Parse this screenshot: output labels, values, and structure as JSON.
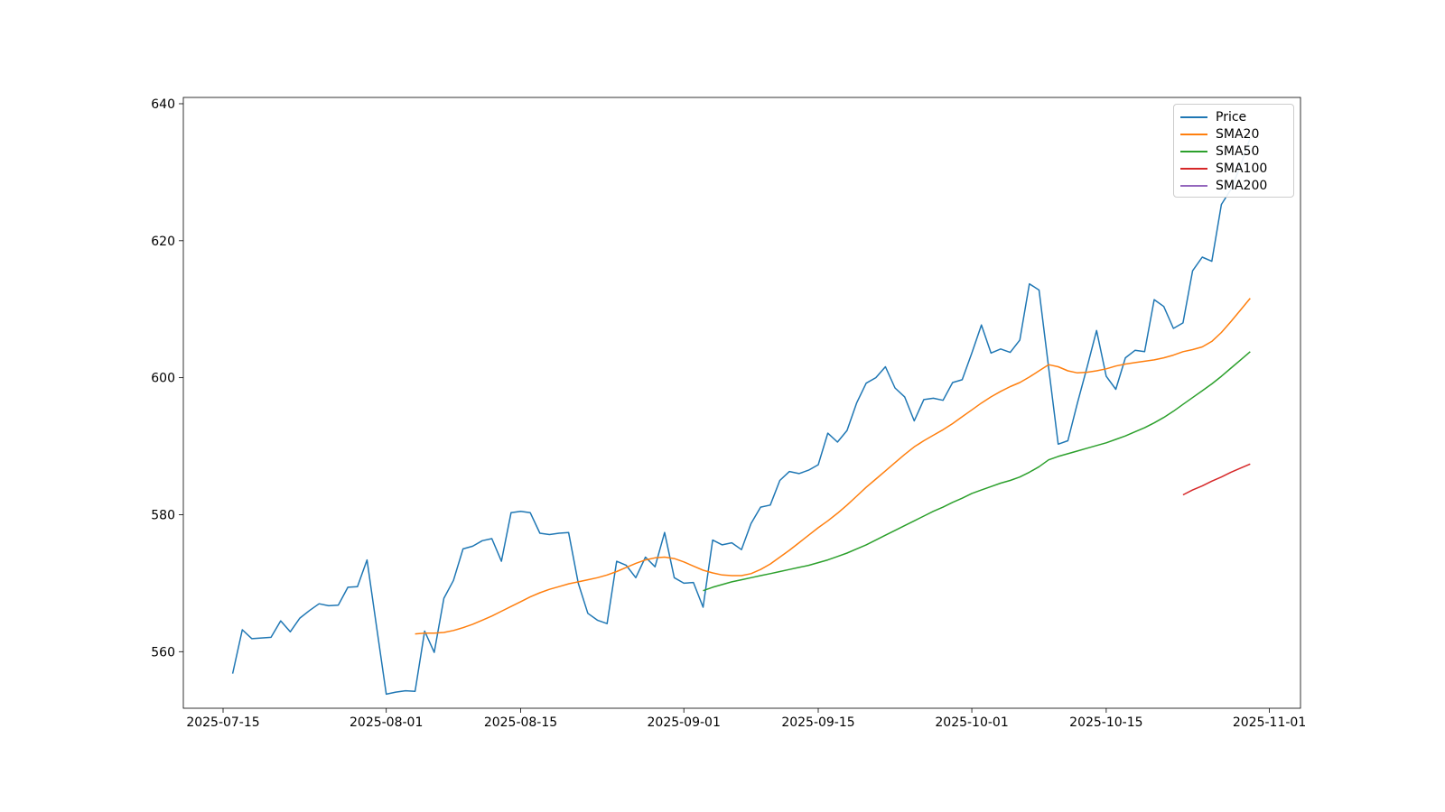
{
  "chart_data": {
    "type": "line",
    "title": "",
    "xlabel": "",
    "ylabel": "",
    "grid": false,
    "background_color": "#ffffff",
    "spine_color": "#000000",
    "x_axis": {
      "start_date": "2025-07-16",
      "unit": "calendar-daily",
      "tick_labels": [
        "2025-07-15",
        "2025-08-01",
        "2025-08-15",
        "2025-09-01",
        "2025-09-15",
        "2025-10-01",
        "2025-10-15",
        "2025-11-01"
      ],
      "tick_day_offsets": [
        -1,
        16,
        30,
        47,
        61,
        77,
        91,
        108
      ],
      "xlim_day_offsets": [
        -5.14,
        111.24
      ]
    },
    "y_axis": {
      "tick_labels": [
        "560",
        "580",
        "600",
        "620",
        "640"
      ],
      "ticks": [
        560,
        580,
        600,
        620,
        640
      ],
      "ylim": [
        551.74,
        640.92
      ]
    },
    "legend": {
      "position": "upper right",
      "entries": [
        {
          "label": "Price",
          "color": "#1f77b4"
        },
        {
          "label": "SMA20",
          "color": "#ff7f0e"
        },
        {
          "label": "SMA50",
          "color": "#2ca02c"
        },
        {
          "label": "SMA100",
          "color": "#d62728"
        },
        {
          "label": "SMA200",
          "color": "#9467bd"
        }
      ]
    },
    "series": [
      {
        "name": "Price",
        "color": "#1f77b4",
        "start_day_offset": 0,
        "values": [
          556.8,
          563.2,
          561.9,
          562.0,
          562.1,
          564.5,
          562.9,
          564.9,
          566.0,
          567.0,
          566.7,
          566.8,
          569.4,
          569.5,
          573.4,
          563.5,
          553.8,
          554.1,
          554.3,
          554.2,
          563.0,
          559.9,
          567.8,
          570.4,
          575.0,
          575.4,
          576.2,
          576.5,
          573.2,
          580.3,
          580.5,
          580.3,
          577.3,
          577.1,
          577.3,
          577.4,
          570.0,
          565.6,
          564.6,
          564.1,
          573.2,
          572.6,
          570.8,
          573.8,
          572.4,
          577.4,
          570.8,
          570.0,
          570.1,
          566.5,
          576.3,
          575.6,
          575.9,
          574.9,
          578.7,
          581.1,
          581.4,
          585.0,
          586.3,
          586.0,
          586.5,
          587.3,
          591.9,
          590.6,
          592.3,
          596.3,
          599.2,
          600.0,
          601.6,
          598.5,
          597.2,
          593.7,
          596.8,
          597.0,
          596.7,
          599.3,
          599.7,
          603.6,
          607.7,
          603.6,
          604.2,
          603.7,
          605.5,
          613.7,
          612.8,
          601.5,
          590.3,
          590.8,
          596.3,
          601.5,
          606.9,
          600.2,
          598.3,
          602.9,
          604.0,
          603.8,
          611.4,
          610.4,
          607.2,
          608.0,
          615.6,
          617.6,
          617.0,
          625.3,
          627.5,
          631.0,
          635.0
        ]
      },
      {
        "name": "SMA20",
        "color": "#ff7f0e",
        "start_day_offset": 19,
        "values": [
          562.6,
          562.7,
          562.7,
          562.8,
          563.1,
          563.5,
          564.0,
          564.6,
          565.2,
          565.9,
          566.6,
          567.3,
          568.0,
          568.6,
          569.1,
          569.5,
          569.9,
          570.2,
          570.5,
          570.8,
          571.2,
          571.7,
          572.3,
          572.9,
          573.4,
          573.7,
          573.8,
          573.6,
          573.1,
          572.5,
          571.9,
          571.5,
          571.2,
          571.1,
          571.1,
          571.4,
          572.0,
          572.8,
          573.8,
          574.8,
          575.9,
          577.0,
          578.1,
          579.1,
          580.2,
          581.4,
          582.7,
          584.0,
          585.2,
          586.4,
          587.6,
          588.8,
          589.9,
          590.8,
          591.6,
          592.4,
          593.3,
          594.3,
          595.3,
          596.3,
          597.2,
          598.0,
          598.7,
          599.3,
          600.1,
          601.0,
          601.9,
          601.6,
          601.0,
          600.7,
          600.8,
          601.0,
          601.3,
          601.7,
          602.0,
          602.2,
          602.4,
          602.6,
          602.9,
          603.3,
          603.8,
          604.1,
          604.5,
          605.3,
          606.6,
          608.2,
          609.9,
          611.6
        ]
      },
      {
        "name": "SMA50",
        "color": "#2ca02c",
        "start_day_offset": 49,
        "values": [
          568.9,
          569.4,
          569.8,
          570.2,
          570.5,
          570.8,
          571.1,
          571.4,
          571.7,
          572.0,
          572.3,
          572.6,
          573.0,
          573.4,
          573.9,
          574.4,
          575.0,
          575.6,
          576.3,
          577.0,
          577.7,
          578.4,
          579.1,
          579.8,
          580.5,
          581.1,
          581.8,
          582.4,
          583.1,
          583.6,
          584.1,
          584.6,
          585.0,
          585.5,
          586.2,
          587.0,
          588.0,
          588.5,
          588.9,
          589.3,
          589.7,
          590.1,
          590.5,
          591.0,
          591.5,
          592.1,
          592.7,
          593.4,
          594.2,
          595.1,
          596.1,
          597.1,
          598.1,
          599.1,
          600.2,
          601.4,
          602.6,
          603.8
        ]
      },
      {
        "name": "SMA100",
        "color": "#d62728",
        "start_day_offset": 99,
        "values": [
          582.9,
          583.6,
          584.2,
          584.9,
          585.5,
          586.2,
          586.8,
          587.4
        ]
      },
      {
        "name": "SMA200",
        "color": "#9467bd",
        "start_day_offset": null,
        "values": []
      }
    ]
  }
}
